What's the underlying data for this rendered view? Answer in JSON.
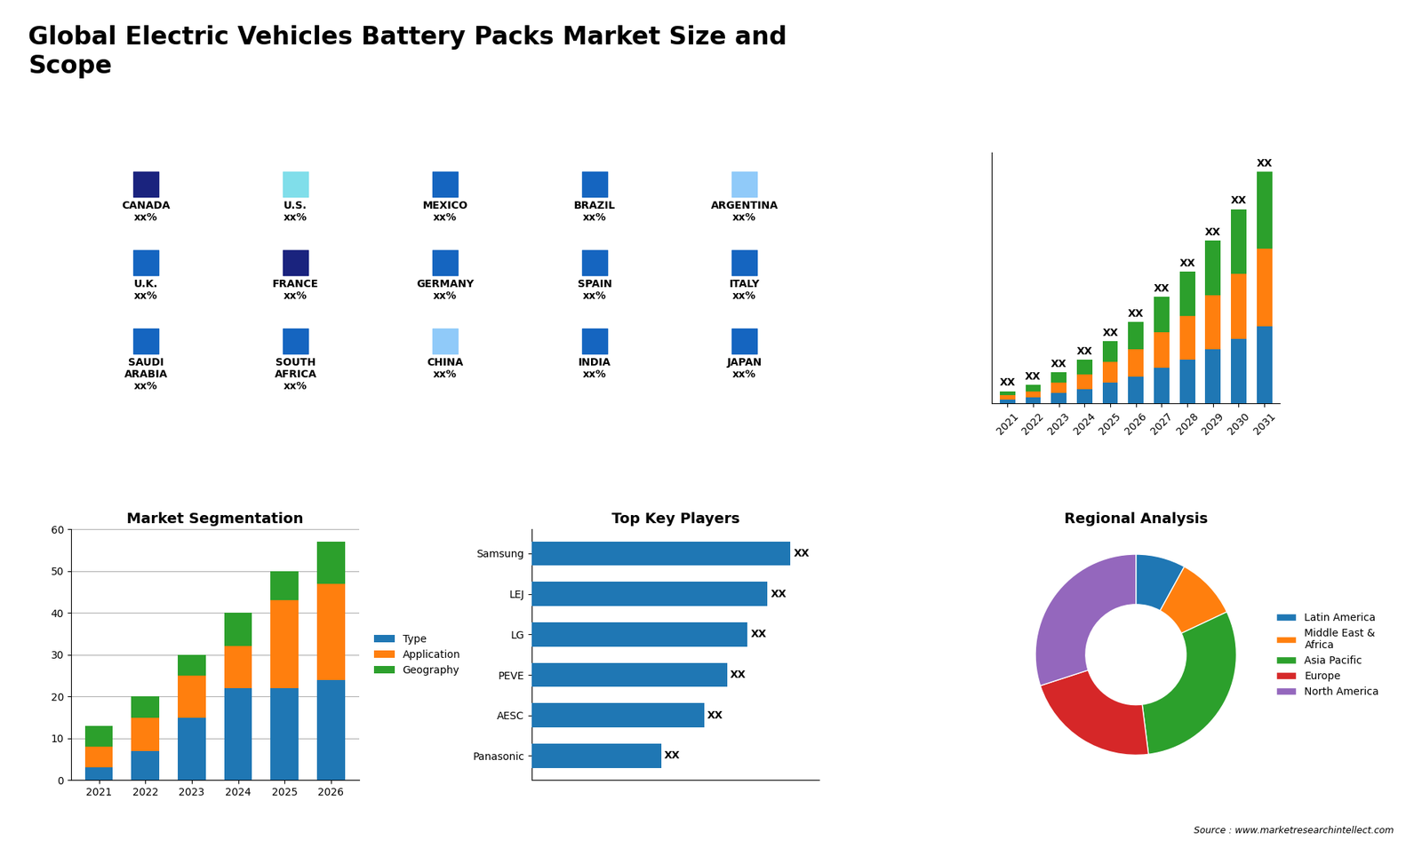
{
  "title": "Global Electric Vehicles Battery Packs Market Size and\nScope",
  "annotations": [
    "Source : www.marketresearchintellect.com"
  ],
  "chart_data": [
    {
      "type": "tiles",
      "categories": [
        "CANADA\nxx%",
        "U.S.\nxx%",
        "MEXICO\nxx%",
        "BRAZIL\nxx%",
        "ARGENTINA\nxx%",
        "U.K.\nxx%",
        "FRANCE\nxx%",
        "GERMANY\nxx%",
        "SPAIN\nxx%",
        "ITALY\nxx%",
        "SAUDI\nARABIA\nxx%",
        "SOUTH\nAFRICA\nxx%",
        "CHINA\nxx%",
        "INDIA\nxx%",
        "JAPAN\nxx%"
      ],
      "colors": [
        "#1a237e",
        "#80deea",
        "#1565c0",
        "#1565c0",
        "#90caf9",
        "#1565c0",
        "#1a237e",
        "#1565c0",
        "#1565c0",
        "#1565c0",
        "#1565c0",
        "#1565c0",
        "#90caf9",
        "#1565c0",
        "#1565c0"
      ]
    },
    {
      "type": "bar",
      "stacked": true,
      "tick_labels": "x",
      "data_labels": true,
      "categories": [
        "2021",
        "2022",
        "2023",
        "2024",
        "2025",
        "2026",
        "2027",
        "2028",
        "2029",
        "2030",
        "2031"
      ],
      "series": [
        {
          "values": [
            2,
            3,
            5,
            7,
            10,
            13,
            17,
            21,
            26,
            31,
            37
          ]
        },
        {
          "values": [
            2,
            3,
            5,
            7,
            10,
            13,
            17,
            21,
            26,
            31,
            37
          ]
        },
        {
          "values": [
            2,
            3,
            5,
            7,
            10,
            13,
            17,
            21,
            26,
            31,
            37
          ]
        }
      ],
      "value_labels": [
        "XX",
        "XX",
        "XX",
        "XX",
        "XX",
        "XX",
        "XX",
        "XX",
        "XX",
        "XX",
        "XX"
      ],
      "ylim": [
        0,
        120
      ]
    },
    {
      "type": "bar",
      "stacked": true,
      "title": "Market Segmentation",
      "grid": true,
      "legend": "right",
      "categories": [
        "2021",
        "2022",
        "2023",
        "2024",
        "2025",
        "2026"
      ],
      "series": [
        {
          "name": "Type",
          "values": [
            3,
            7,
            15,
            22,
            22,
            24
          ]
        },
        {
          "name": "Application",
          "values": [
            5,
            8,
            10,
            10,
            21,
            23
          ]
        },
        {
          "name": "Geography",
          "values": [
            5,
            5,
            5,
            8,
            7,
            10
          ]
        }
      ],
      "ylim": [
        0,
        60
      ],
      "yticks": [
        0,
        10,
        20,
        30,
        40,
        50,
        60
      ]
    },
    {
      "type": "bar",
      "orientation": "horizontal",
      "title": "Top Key Players",
      "tick_labels": "y",
      "data_labels": true,
      "categories": [
        "Samsung",
        "LEJ",
        "LG",
        "PEVE",
        "AESC",
        "Panasonic"
      ],
      "values": [
        90,
        82,
        75,
        68,
        60,
        45
      ],
      "value_labels": [
        "XX",
        "XX",
        "XX",
        "XX",
        "XX",
        "XX"
      ],
      "xlim": [
        0,
        100
      ]
    },
    {
      "type": "pie",
      "title": "Regional Analysis",
      "legend": "right",
      "categories": [
        "Latin America",
        "Middle East &\nAfrica",
        "Asia Pacific",
        "Europe",
        "North America"
      ],
      "values": [
        8,
        10,
        30,
        22,
        30
      ]
    }
  ]
}
